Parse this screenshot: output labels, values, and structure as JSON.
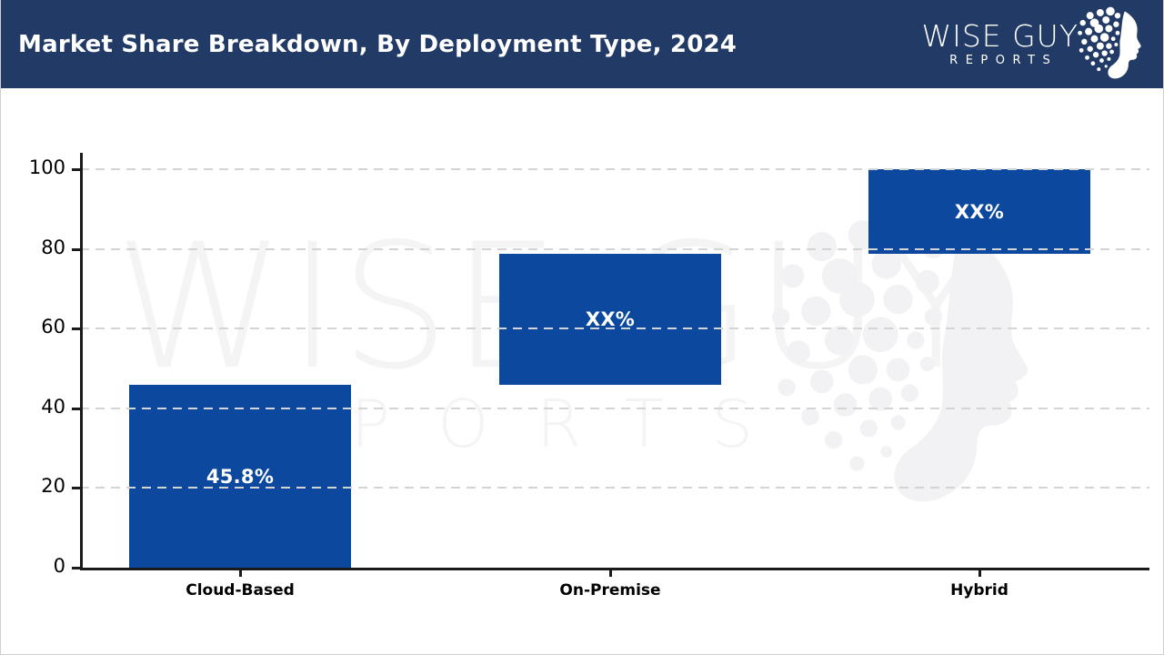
{
  "header": {
    "title": "Market Share Breakdown, By Deployment Type, 2024",
    "logo": {
      "line1": "WISE GUY",
      "line2": "REPORTS"
    }
  },
  "watermark": {
    "line1": "WISE GUY",
    "line2": "REPORTS"
  },
  "chart_data": {
    "type": "bar",
    "subtype": "waterfall",
    "title": "Market Share Breakdown, By Deployment Type, 2024",
    "categories": [
      "Cloud-Based",
      "On-Premise",
      "Hybrid"
    ],
    "segments": [
      {
        "category": "Cloud-Based",
        "start": 0,
        "end": 45.8,
        "label": "45.8%"
      },
      {
        "category": "On-Premise",
        "start": 45.8,
        "end": 78.7,
        "label": "XX%"
      },
      {
        "category": "Hybrid",
        "start": 78.7,
        "end": 100,
        "label": "XX%"
      }
    ],
    "ylim": [
      0,
      100
    ],
    "yticks": [
      0,
      20,
      40,
      60,
      80,
      100
    ],
    "xlabel": "",
    "ylabel": "",
    "grid": "horizontal-dashed",
    "legend": "none",
    "bar_color": "#0c499e",
    "label_color": "#ffffff"
  },
  "colors": {
    "header_bg": "#213a66",
    "bar": "#0c499e",
    "grid": "#d4d4d4",
    "axis": "#1a1a1a",
    "tick_text": "#000000",
    "watermark": "#f4f4f5",
    "canvas": "#ffffff",
    "border": "#cfcfcf"
  }
}
